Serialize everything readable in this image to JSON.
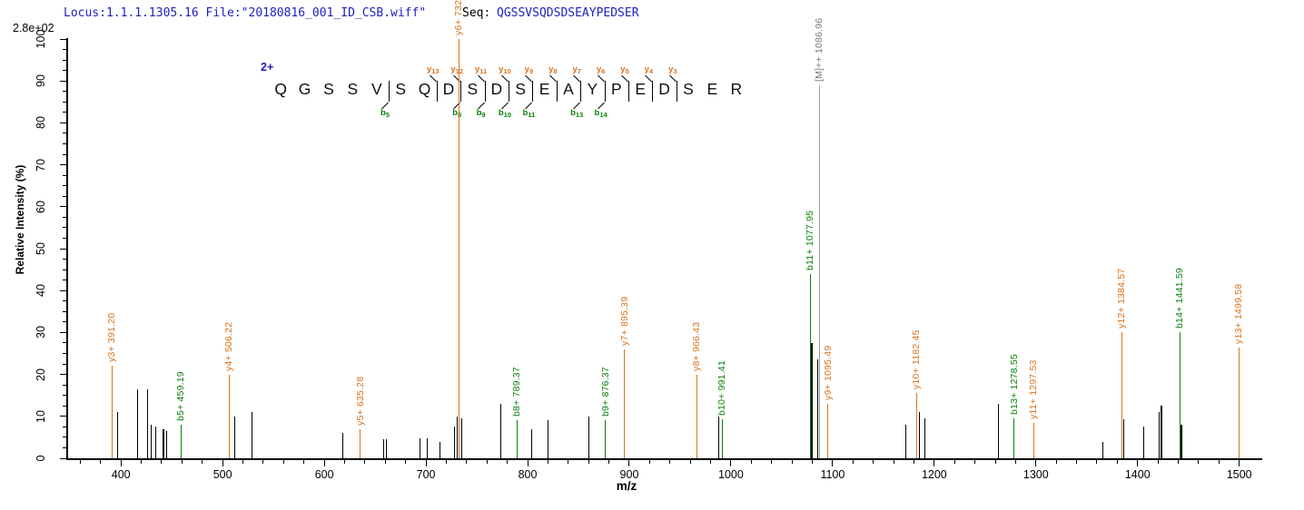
{
  "header": {
    "locus_text": "Locus:1.1.1.1305.16 File:\"20180816_001_ID_CSB.wiff\"",
    "seq_label": "Seq:",
    "seq_value": "QGSSVSQDSDSEAYPEDSER",
    "max_intensity_label": "2.8e+02"
  },
  "peptide": {
    "charge_label": "2+",
    "residues": [
      "Q",
      "G",
      "S",
      "S",
      "V",
      "S",
      "Q",
      "D",
      "S",
      "D",
      "S",
      "E",
      "A",
      "Y",
      "P",
      "E",
      "D",
      "S",
      "E",
      "R"
    ],
    "sites": [
      {
        "boundary": 5,
        "b": "b5"
      },
      {
        "boundary": 7,
        "y": "y13"
      },
      {
        "boundary": 8,
        "y": "y12",
        "b": "b8"
      },
      {
        "boundary": 9,
        "y": "y11",
        "b": "b9"
      },
      {
        "boundary": 10,
        "y": "y10",
        "b": "b10"
      },
      {
        "boundary": 11,
        "y": "y9",
        "b": "b11"
      },
      {
        "boundary": 12,
        "y": "y8"
      },
      {
        "boundary": 13,
        "y": "y7",
        "b": "b13"
      },
      {
        "boundary": 14,
        "y": "y6",
        "b": "b14"
      },
      {
        "boundary": 15,
        "y": "y5"
      },
      {
        "boundary": 16,
        "y": "y4"
      },
      {
        "boundary": 17,
        "y": "y3"
      }
    ]
  },
  "colors": {
    "y_ion": "#d9731f",
    "b_ion": "#0b800b",
    "precursor_line": "#9a9a9a",
    "precursor_text": "#7a7a7a",
    "peak": "#000000",
    "header_blue": "#2020bf"
  },
  "chart_data": {
    "type": "bar",
    "subtype": "mass-spectrum",
    "title": "",
    "xlabel": "m/z",
    "ylabel": "Relative Intensity (%)",
    "xlim": [
      348,
      1519
    ],
    "ylim": [
      0,
      100
    ],
    "x_major_ticks": [
      400,
      500,
      600,
      700,
      800,
      900,
      1000,
      1100,
      1200,
      1300,
      1400,
      1500
    ],
    "x_minor_step": 20,
    "y_major_ticks": [
      0,
      10,
      20,
      30,
      40,
      50,
      60,
      70,
      80,
      90,
      100
    ],
    "y_minor_step": 2.5,
    "grid": false,
    "legend": false,
    "peaks": [
      {
        "mz": 391.2,
        "i": 22,
        "ion": "y",
        "label": "y3+ 391.20"
      },
      {
        "mz": 397,
        "i": 11
      },
      {
        "mz": 416,
        "i": 16.5
      },
      {
        "mz": 426,
        "i": 16.5
      },
      {
        "mz": 430,
        "i": 8
      },
      {
        "mz": 434,
        "i": 7.5
      },
      {
        "mz": 442,
        "i": 7,
        "w": 2
      },
      {
        "mz": 444.5,
        "i": 6.5
      },
      {
        "mz": 459.19,
        "i": 8,
        "ion": "b",
        "label": "b5+ 459.19"
      },
      {
        "mz": 506.22,
        "i": 20,
        "ion": "y",
        "label": "y4+ 506.22"
      },
      {
        "mz": 512,
        "i": 10
      },
      {
        "mz": 529,
        "i": 11
      },
      {
        "mz": 618,
        "i": 6
      },
      {
        "mz": 635.28,
        "i": 7,
        "ion": "y",
        "label": "y5+ 635.28"
      },
      {
        "mz": 658,
        "i": 4.5
      },
      {
        "mz": 661.5,
        "i": 4.5
      },
      {
        "mz": 694,
        "i": 4.8
      },
      {
        "mz": 701,
        "i": 4.8
      },
      {
        "mz": 714,
        "i": 4
      },
      {
        "mz": 728.5,
        "i": 7.5
      },
      {
        "mz": 731,
        "i": 10
      },
      {
        "mz": 732.31,
        "i": 100,
        "ion": "y",
        "label": "y6+ 732.31"
      },
      {
        "mz": 735,
        "i": 9.5
      },
      {
        "mz": 774,
        "i": 13
      },
      {
        "mz": 789.37,
        "i": 9,
        "ion": "b",
        "label": "b8+ 789.37"
      },
      {
        "mz": 804,
        "i": 7
      },
      {
        "mz": 820,
        "i": 9
      },
      {
        "mz": 860,
        "i": 10
      },
      {
        "mz": 876.37,
        "i": 9,
        "ion": "b",
        "label": "b9+ 876.37"
      },
      {
        "mz": 895.39,
        "i": 26,
        "ion": "y",
        "label": "y7+ 895.39"
      },
      {
        "mz": 966.43,
        "i": 20,
        "ion": "y",
        "label": "y8+ 966.43"
      },
      {
        "mz": 988,
        "i": 10
      },
      {
        "mz": 991.41,
        "i": 9.3,
        "ion": "b",
        "label": "b10+ 991.41"
      },
      {
        "mz": 1086.96,
        "i": 89,
        "ion": "precursor",
        "label": "[M]++ 1086.96"
      },
      {
        "mz": 1077.95,
        "i": 44,
        "ion": "b",
        "label": "b11+ 1077.95"
      },
      {
        "mz": 1079.2,
        "i": 27.5,
        "w": 2
      },
      {
        "mz": 1085.5,
        "i": 23.5
      },
      {
        "mz": 1095.49,
        "i": 13,
        "ion": "y",
        "label": "y9+ 1095.49"
      },
      {
        "mz": 1172,
        "i": 8
      },
      {
        "mz": 1182.45,
        "i": 15.5,
        "ion": "y",
        "label": "y10+ 1182.45"
      },
      {
        "mz": 1185.5,
        "i": 11
      },
      {
        "mz": 1191,
        "i": 9.5
      },
      {
        "mz": 1263,
        "i": 13
      },
      {
        "mz": 1278.55,
        "i": 9.5,
        "ion": "b",
        "label": "b13+ 1278.55"
      },
      {
        "mz": 1297.53,
        "i": 8.5,
        "ion": "y",
        "label": "y11+ 1297.53"
      },
      {
        "mz": 1366,
        "i": 4
      },
      {
        "mz": 1384.57,
        "i": 30,
        "ion": "y",
        "label": "y12+ 1384.57"
      },
      {
        "mz": 1386.5,
        "i": 9.3
      },
      {
        "mz": 1406,
        "i": 7.5
      },
      {
        "mz": 1421,
        "i": 11
      },
      {
        "mz": 1423.5,
        "i": 12.5,
        "w": 2
      },
      {
        "mz": 1441.59,
        "i": 30,
        "ion": "b",
        "label": "b14+ 1441.59"
      },
      {
        "mz": 1443.5,
        "i": 8,
        "w": 2
      },
      {
        "mz": 1499.58,
        "i": 26.5,
        "ion": "y",
        "label": "y13+ 1499.58"
      }
    ]
  }
}
